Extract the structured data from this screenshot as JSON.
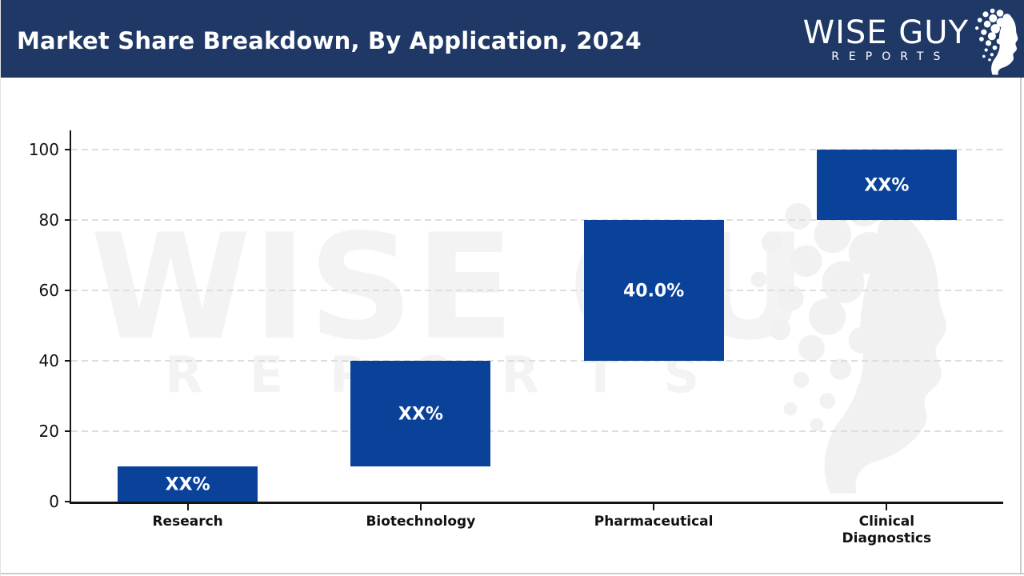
{
  "header": {
    "title": "Market Share Breakdown, By Application, 2024",
    "logo": {
      "line1": "WISE GUY",
      "line2": "REPORTS"
    }
  },
  "watermark": {
    "line1": "WISE GU",
    "line2": "REPORTS"
  },
  "chart_data": {
    "type": "bar",
    "subtype": "waterfall",
    "title": "Market Share Breakdown, By Application, 2024",
    "categories": [
      "Research",
      "Biotechnology",
      "Pharmaceutical",
      "Clinical\nDiagnostics"
    ],
    "segments": [
      {
        "category": "Research",
        "start": 0,
        "end": 10,
        "value_pct": 10,
        "label": "XX%"
      },
      {
        "category": "Biotechnology",
        "start": 10,
        "end": 40,
        "value_pct": 30,
        "label": "XX%"
      },
      {
        "category": "Pharmaceutical",
        "start": 40,
        "end": 80,
        "value_pct": 40,
        "label": "40.0%"
      },
      {
        "category": "Clinical Diagnostics",
        "start": 80,
        "end": 100,
        "value_pct": 20,
        "label": "XX%"
      }
    ],
    "yticks": [
      0,
      20,
      40,
      60,
      80,
      100
    ],
    "ylim": [
      0,
      107
    ],
    "xlabel": "",
    "ylabel": "",
    "grid": "horizontal-dashed",
    "legend_position": "none",
    "colors": {
      "bar": "#0a4299",
      "bar_label": "#ffffff",
      "axis": "#151515",
      "gridline": "#dedede",
      "header_bg": "#1f3866",
      "header_text": "#ffffff",
      "watermark": "#f2f2f2"
    }
  }
}
